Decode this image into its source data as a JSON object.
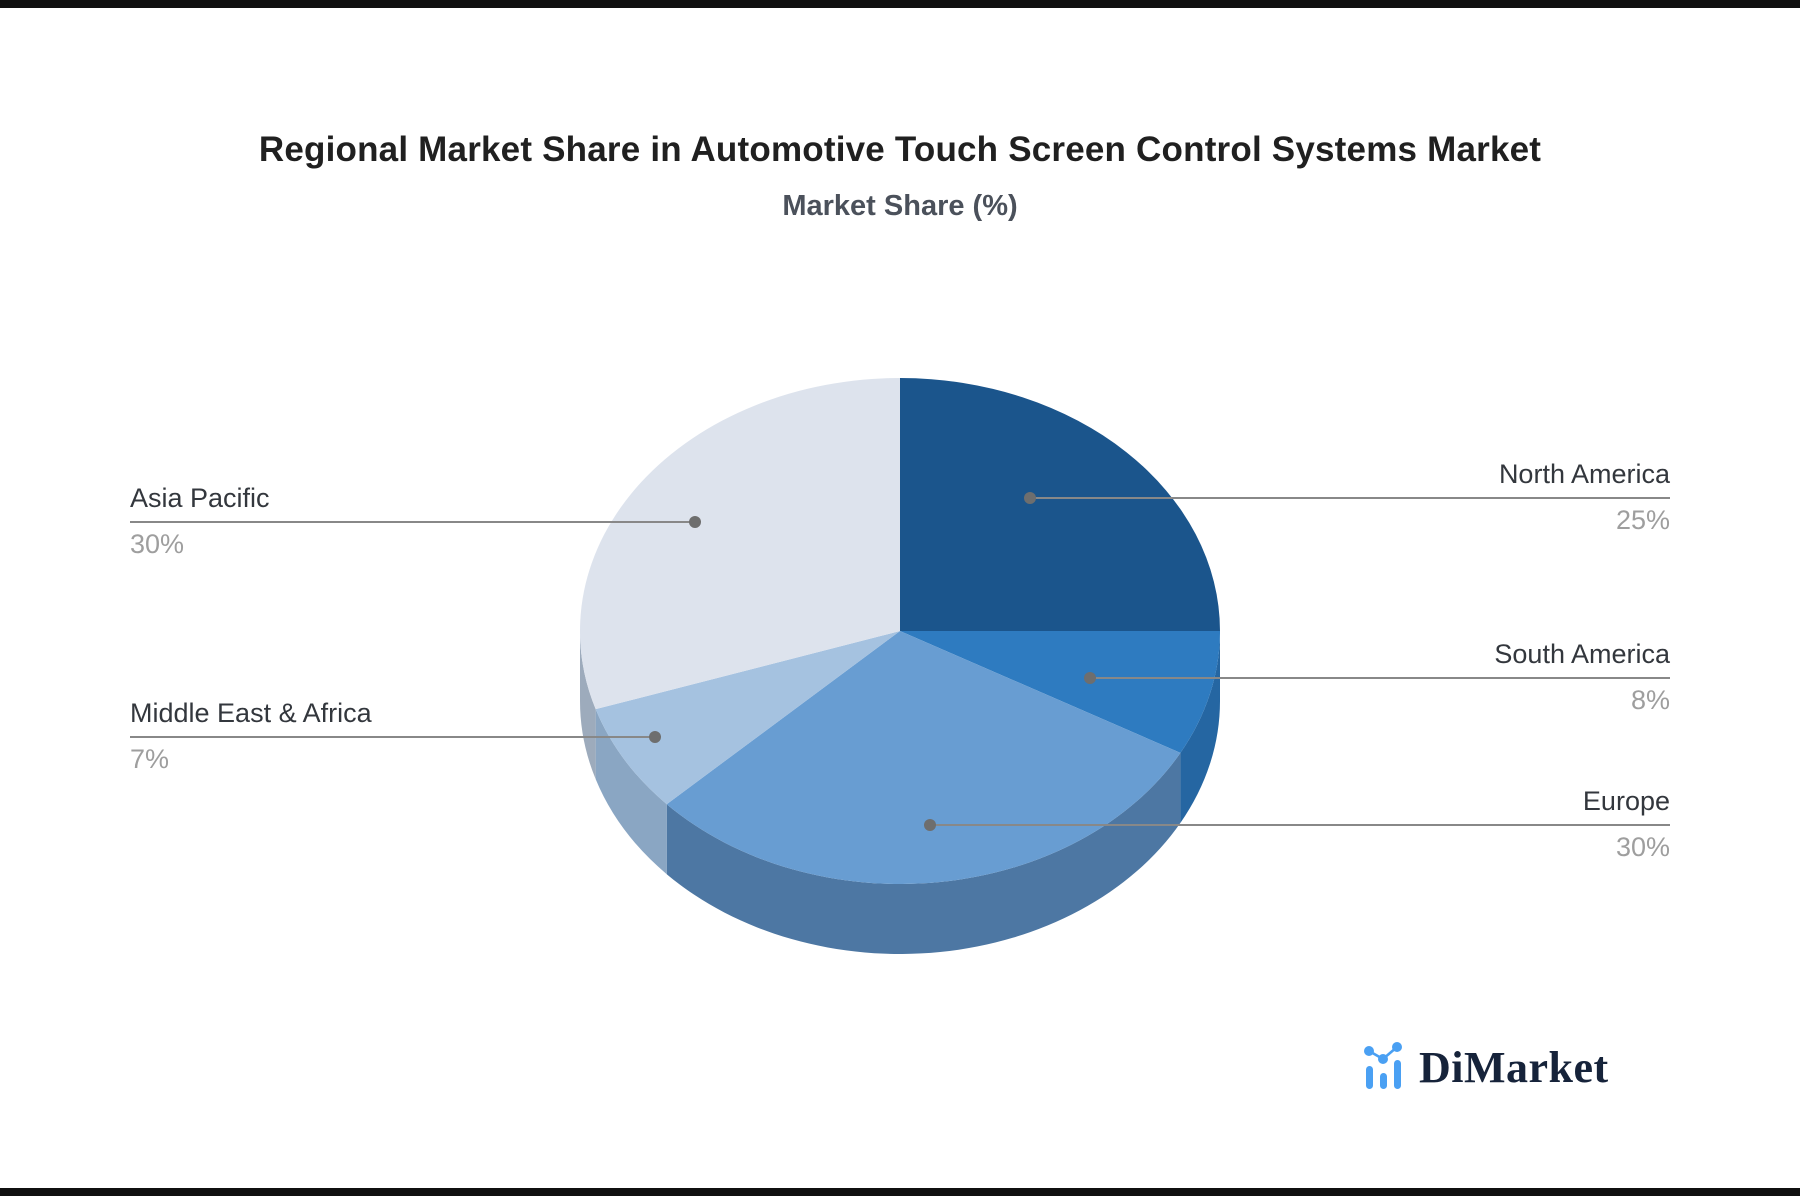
{
  "page": {
    "background": "#ffffff",
    "frame_bar_color": "#101010"
  },
  "chart_data": {
    "type": "pie",
    "style": "3d-pie",
    "title": "Regional Market Share in Automotive Touch Screen Control Systems Market",
    "subtitle": "Market Share (%)",
    "unit": "%",
    "legend_position": "none",
    "label_style": "callout-lines-with-dots",
    "total": 100,
    "slices": [
      {
        "label": "North America",
        "value": 25,
        "pct_label": "25%",
        "color": "#1b558c",
        "depth_color": "#153f69",
        "callout_side": "right"
      },
      {
        "label": "South America",
        "value": 8,
        "pct_label": "8%",
        "color": "#2e7bc0",
        "depth_color": "#2566a2",
        "callout_side": "right"
      },
      {
        "label": "Europe",
        "value": 30,
        "pct_label": "30%",
        "color": "#689dd2",
        "depth_color": "#4d77a3",
        "callout_side": "right"
      },
      {
        "label": "Middle East & Africa",
        "value": 7,
        "pct_label": "7%",
        "color": "#a5c2e0",
        "depth_color": "#8aa6c3",
        "callout_side": "left"
      },
      {
        "label": "Asia Pacific",
        "value": 30,
        "pct_label": "30%",
        "color": "#dde3ed",
        "depth_color": "#9dabbc",
        "callout_side": "left"
      }
    ],
    "leader_line_color": "#888888",
    "leader_dot_color": "#6e6e6e",
    "label_color": "#33373d",
    "pct_color": "#9e9e9e"
  },
  "branding": {
    "logo_text": "DiMarket",
    "logo_text_color": "#16233a",
    "icon_color": "#4aa0f3",
    "icon_name": "bar-chart-with-trend-dots"
  }
}
